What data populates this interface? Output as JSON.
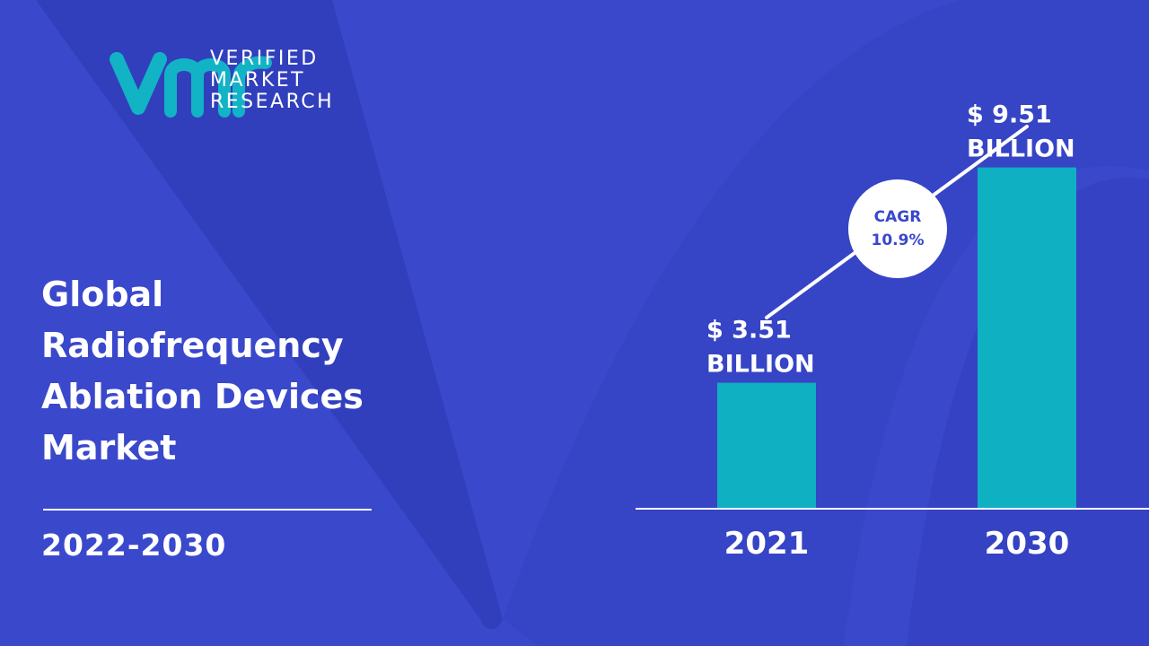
{
  "brand": {
    "name_lines": [
      "VERIFIED",
      "MARKET",
      "RESEARCH"
    ],
    "monogram": "vmr"
  },
  "title_lines": [
    "Global",
    "Radiofrequency",
    "Ablation Devices",
    "Market"
  ],
  "period": "2022-2030",
  "cagr": {
    "label": "CAGR",
    "value": "10.9%"
  },
  "colors": {
    "background": "#3a48cc",
    "background_band": "#2e3bb6",
    "bar": "#0fb0c2",
    "text": "#ffffff",
    "badge_text": "#3a48cc"
  },
  "chart_data": {
    "type": "bar",
    "categories": [
      "2021",
      "2030"
    ],
    "values": [
      3.51,
      9.51
    ],
    "value_labels": [
      [
        "$ 3.51",
        "BILLION"
      ],
      [
        "$ 9.51",
        "BILLION"
      ]
    ],
    "ylim": [
      0,
      10.5
    ],
    "trend_line": true,
    "grid": false,
    "legend": "none"
  }
}
